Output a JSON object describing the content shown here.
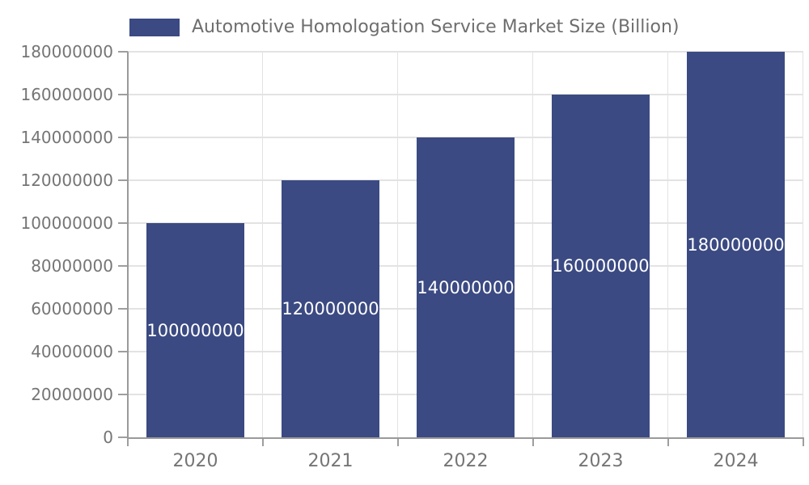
{
  "chart_data": {
    "type": "bar",
    "title": "Automotive Homologation Service Market Size (Billion)",
    "categories": [
      "2020",
      "2021",
      "2022",
      "2023",
      "2024"
    ],
    "values": [
      100000000,
      120000000,
      140000000,
      160000000,
      180000000
    ],
    "data_labels": [
      "100000000",
      "120000000",
      "140000000",
      "160000000",
      "180000000"
    ],
    "xlabel": "",
    "ylabel": "",
    "ylim": [
      0,
      180000000
    ],
    "yticks": [
      0,
      20000000,
      40000000,
      60000000,
      80000000,
      100000000,
      120000000,
      140000000,
      160000000,
      180000000
    ],
    "ytick_labels": [
      "0",
      "20000000",
      "40000000",
      "60000000",
      "80000000",
      "100000000",
      "120000000",
      "140000000",
      "160000000",
      "180000000"
    ],
    "grid": true,
    "legend_position": "top-left",
    "colors": {
      "bar": "#3B4A82",
      "bar_label": "#FFFFFF",
      "legend_swatch": "#3B4A82",
      "title_text": "#6E6E6E",
      "axis_text": "#757575",
      "gridline": "#E3E3E3",
      "axis_line": "#9A9A9A",
      "tick": "#9E9E9E",
      "background": "#FFFFFF"
    }
  }
}
